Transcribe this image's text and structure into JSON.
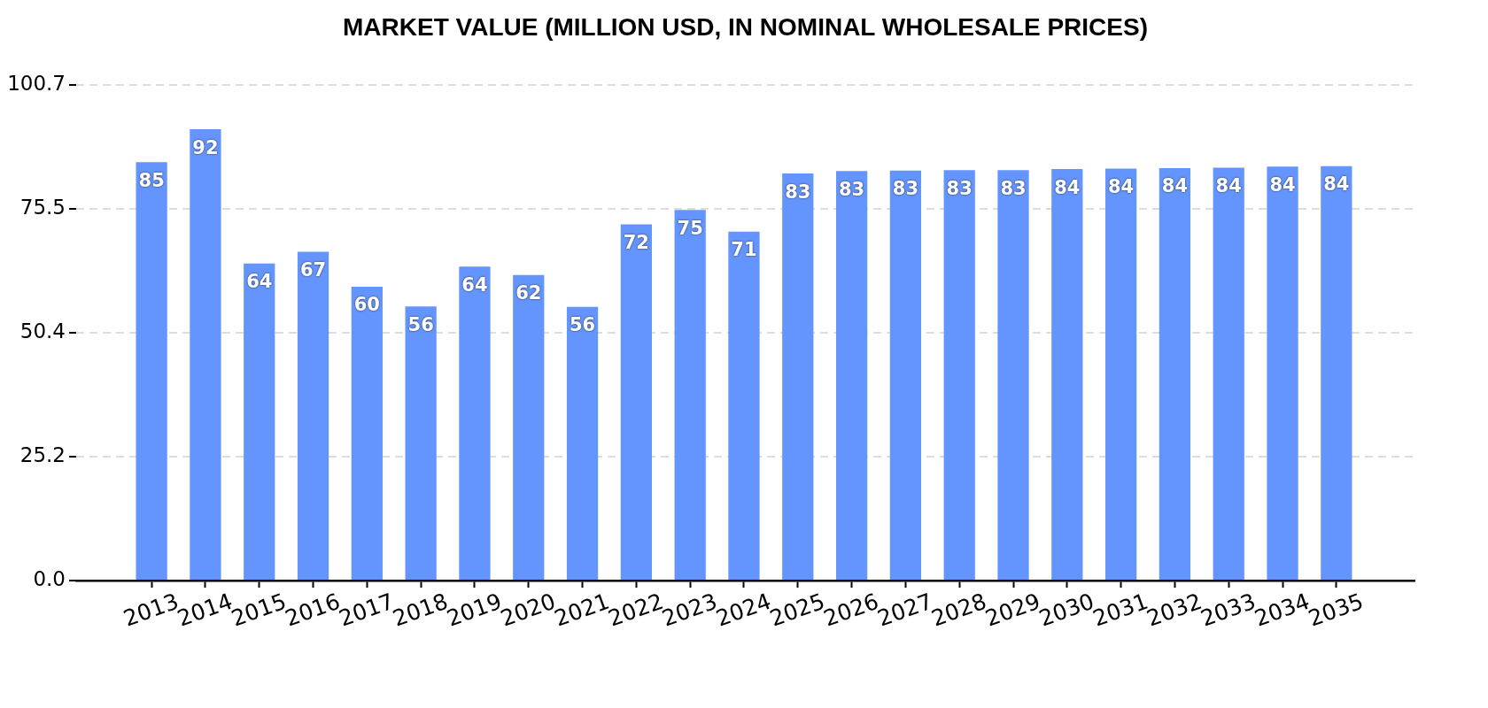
{
  "chart_data": {
    "type": "bar",
    "title": "MARKET VALUE (MILLION USD, IN NOMINAL WHOLESALE PRICES)",
    "categories": [
      "2013",
      "2014",
      "2015",
      "2016",
      "2017",
      "2018",
      "2019",
      "2020",
      "2021",
      "2022",
      "2023",
      "2024",
      "2025",
      "2026",
      "2027",
      "2028",
      "2029",
      "2030",
      "2031",
      "2032",
      "2033",
      "2034",
      "2035"
    ],
    "values": [
      85.0,
      91.7,
      64.4,
      66.8,
      59.7,
      55.7,
      63.8,
      62.1,
      55.6,
      72.4,
      75.3,
      70.9,
      82.7,
      83.2,
      83.3,
      83.4,
      83.4,
      83.6,
      83.7,
      83.8,
      83.9,
      84.1,
      84.2
    ],
    "value_labels": [
      "85",
      "92",
      "64",
      "67",
      "60",
      "56",
      "64",
      "62",
      "56",
      "72",
      "75",
      "71",
      "83",
      "83",
      "83",
      "83",
      "83",
      "84",
      "84",
      "84",
      "84",
      "84",
      "84"
    ],
    "color": "#6495fe",
    "ylim": [
      0,
      100.7
    ],
    "yticks": [
      {
        "value": 0,
        "label": "0.0"
      },
      25.2,
      50.4,
      75.5,
      100.7
    ],
    "grid": "y"
  }
}
